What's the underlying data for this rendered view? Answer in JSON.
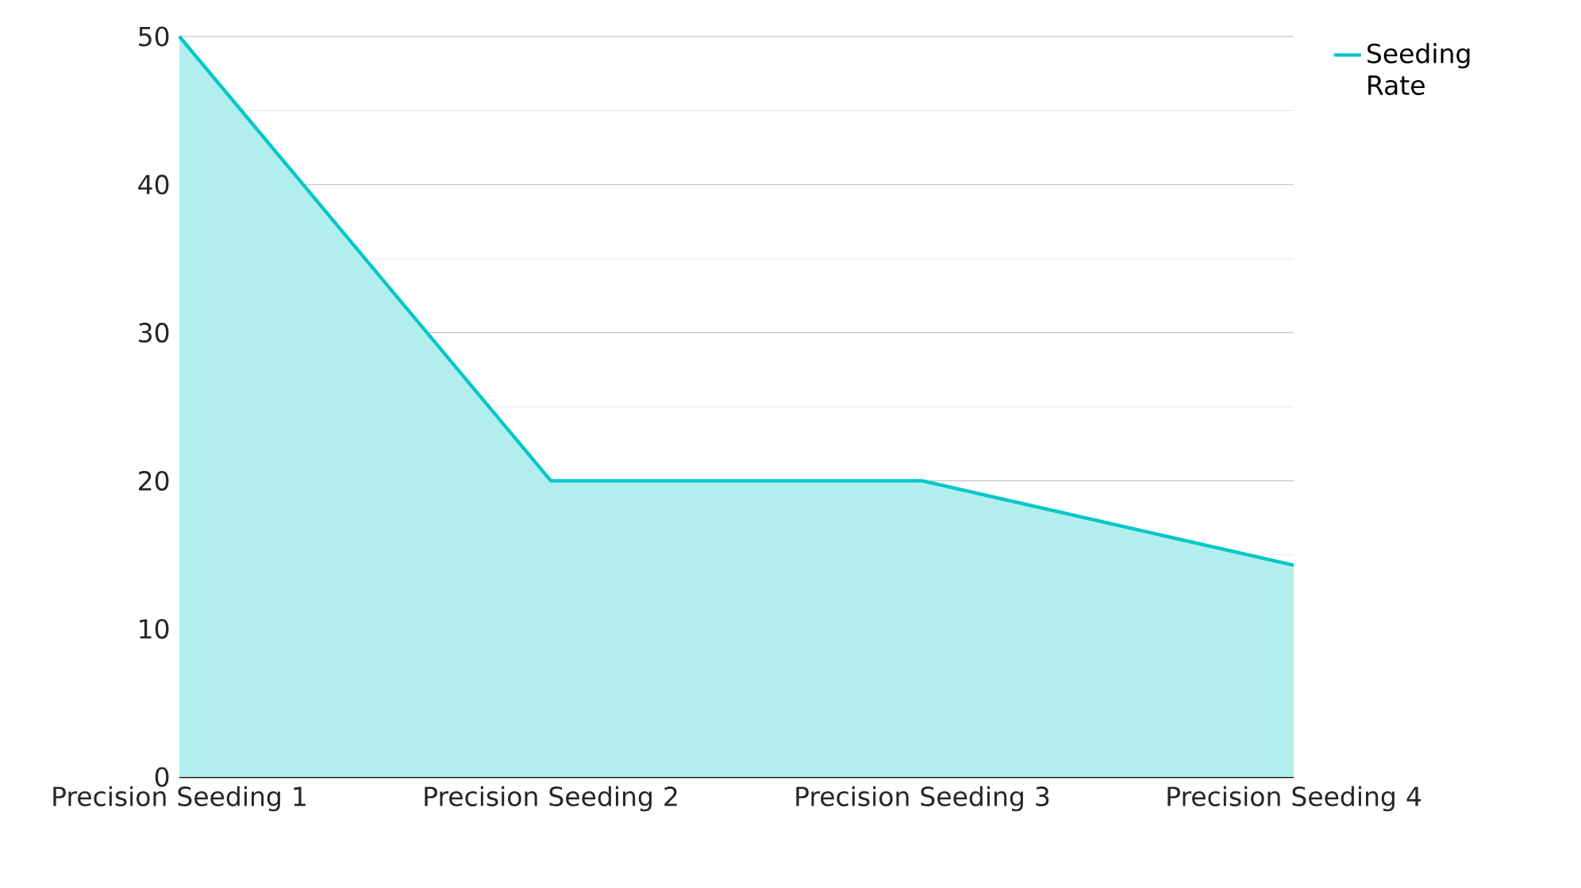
{
  "chart_data": {
    "type": "area",
    "categories": [
      "Precision Seeding 1",
      "Precision Seeding 2",
      "Precision Seeding 3",
      "Precision Seeding 4"
    ],
    "series": [
      {
        "name": "Seeding Rate",
        "color": "#00c8c8",
        "values": [
          50,
          20,
          20,
          14.3
        ]
      }
    ],
    "ylim": [
      0,
      50
    ],
    "yticks": [
      0,
      10,
      20,
      30,
      40,
      50
    ],
    "grid": "y",
    "legend": "top right"
  }
}
